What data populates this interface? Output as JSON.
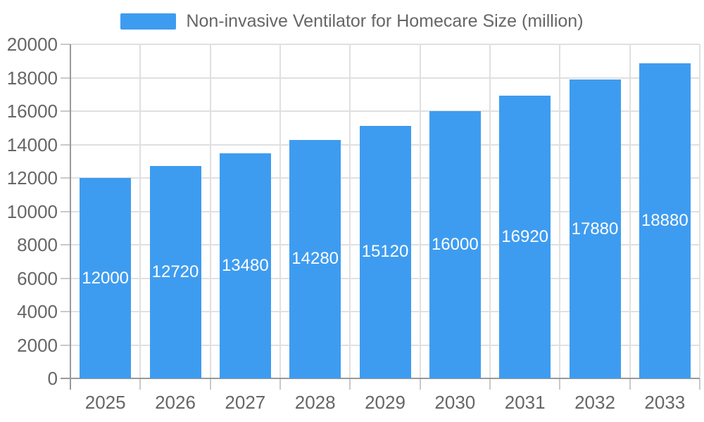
{
  "legend": {
    "label": "Non-invasive Ventilator for Homecare Size (million)"
  },
  "chart_data": {
    "type": "bar",
    "title": "Non-invasive Ventilator for Homecare Size (million)",
    "series_name": "Non-invasive Ventilator for Homecare Size (million)",
    "categories": [
      "2025",
      "2026",
      "2027",
      "2028",
      "2029",
      "2030",
      "2031",
      "2032",
      "2033"
    ],
    "values": [
      12000,
      12720,
      13480,
      14280,
      15120,
      16000,
      16920,
      17880,
      18880
    ],
    "value_labels": [
      "12000",
      "12720",
      "13480",
      "14280",
      "15120",
      "16000",
      "16920",
      "17880",
      "18880"
    ],
    "xlabel": "",
    "ylabel": "",
    "ylim": [
      0,
      20000
    ],
    "ytick_step": 2000,
    "yticks": [
      0,
      2000,
      4000,
      6000,
      8000,
      10000,
      12000,
      14000,
      16000,
      18000,
      20000
    ],
    "grid": true,
    "legend_position": "top",
    "value_label_position": "center-inside",
    "colors": {
      "bar": "#3E9CF0",
      "grid": "#E0E0E0",
      "tick": "#C9C9C9",
      "axis": "#999999",
      "label": "#666666",
      "value_label": "#FFFFFF",
      "background": "#FFFFFF"
    }
  }
}
